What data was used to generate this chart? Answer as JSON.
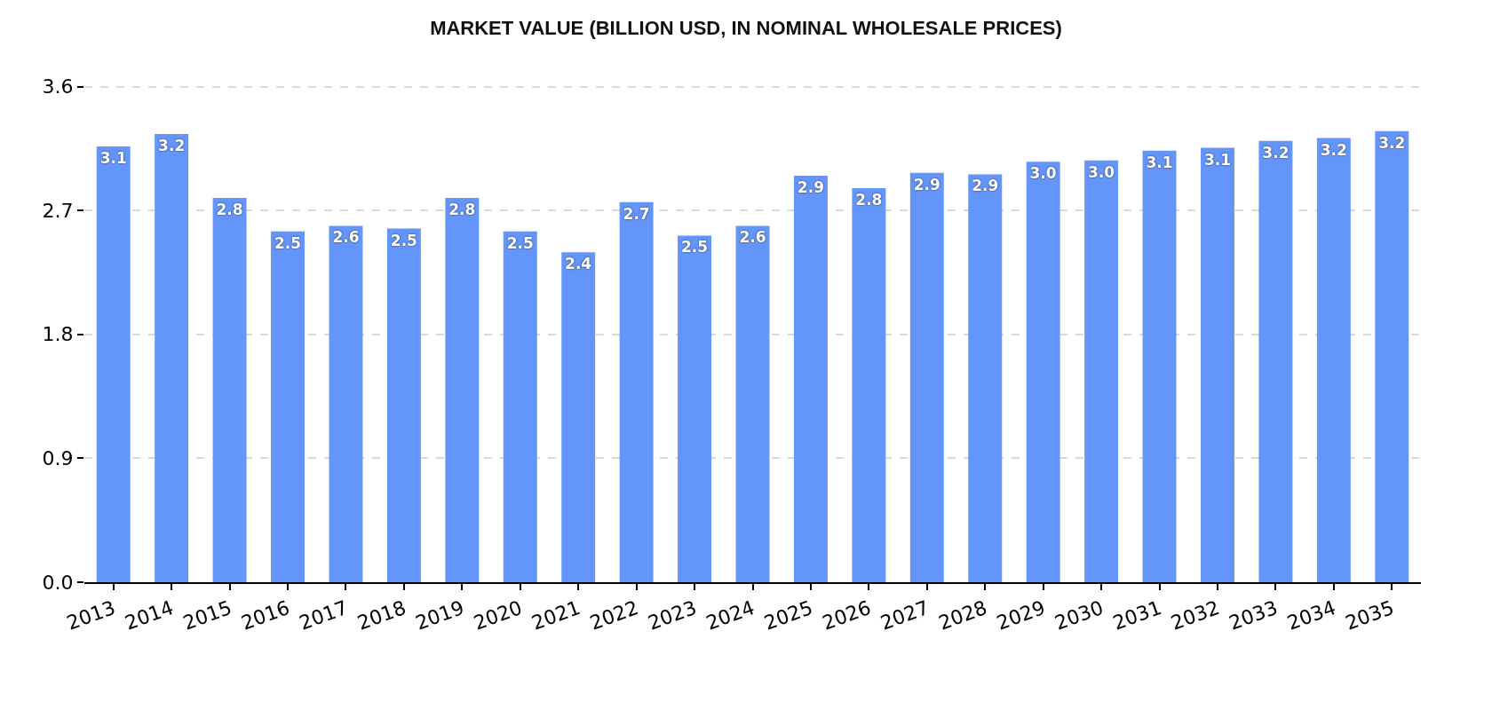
{
  "chart_data": {
    "type": "bar",
    "title": "MARKET VALUE (BILLION USD, IN NOMINAL WHOLESALE PRICES)",
    "categories": [
      "2013",
      "2014",
      "2015",
      "2016",
      "2017",
      "2018",
      "2019",
      "2020",
      "2021",
      "2022",
      "2023",
      "2024",
      "2025",
      "2026",
      "2027",
      "2028",
      "2029",
      "2030",
      "2031",
      "2032",
      "2033",
      "2034",
      "2035"
    ],
    "values": [
      3.13,
      3.22,
      2.76,
      2.52,
      2.56,
      2.54,
      2.76,
      2.52,
      2.37,
      2.73,
      2.49,
      2.56,
      2.92,
      2.83,
      2.94,
      2.93,
      3.02,
      3.03,
      3.1,
      3.12,
      3.17,
      3.19,
      3.24
    ],
    "value_labels": [
      "3.1",
      "3.2",
      "2.8",
      "2.5",
      "2.6",
      "2.5",
      "2.8",
      "2.5",
      "2.4",
      "2.7",
      "2.5",
      "2.6",
      "2.9",
      "2.8",
      "2.9",
      "2.9",
      "3.0",
      "3.0",
      "3.1",
      "3.1",
      "3.2",
      "3.2",
      "3.2"
    ],
    "color": "#6495fa",
    "ylim": [
      0,
      3.57
    ],
    "yticks": [
      {
        "value": 0,
        "label": "0.0"
      },
      {
        "value": 0.89,
        "label": "0.9"
      },
      {
        "value": 1.78,
        "label": "1.8"
      },
      {
        "value": 2.67,
        "label": "2.7"
      },
      {
        "value": 3.56,
        "label": "3.6"
      }
    ],
    "grid": "y"
  }
}
